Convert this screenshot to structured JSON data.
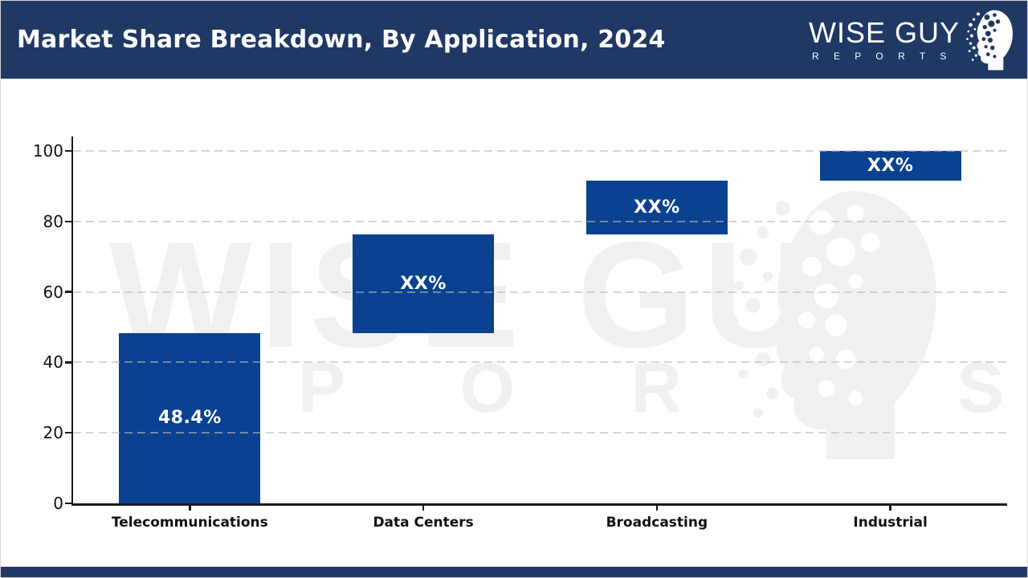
{
  "header": {
    "title": "Market Share Breakdown, By Application, 2024",
    "logo": {
      "wordmark": "WISE GUY",
      "subtext": "R E P O R T S"
    }
  },
  "watermark": {
    "line1": "WISE GUY",
    "line2": "P O R T S"
  },
  "footer": {},
  "colors": {
    "header_bg": "#1f3864",
    "footer_bg": "#1f3864",
    "bar": "#0a4191",
    "bar_label": "#ffffff",
    "axis": "#1a1a1a",
    "gridline": "#d9d9d9",
    "watermark": "#f1f1f1"
  },
  "chart_data": {
    "type": "bar",
    "variant": "waterfall",
    "title": "Market Share Breakdown, By Application, 2024",
    "categories": [
      "Telecommunications",
      "Data Centers",
      "Broadcasting",
      "Industrial"
    ],
    "segments": [
      {
        "category": "Telecommunications",
        "start": 0,
        "end": 48.4,
        "value": 48.4,
        "label": "48.4%"
      },
      {
        "category": "Data Centers",
        "start": 48.4,
        "end": 76.4,
        "value": 28.0,
        "label": "XX%"
      },
      {
        "category": "Broadcasting",
        "start": 76.4,
        "end": 91.5,
        "value": 15.1,
        "label": "XX%"
      },
      {
        "category": "Industrial",
        "start": 91.5,
        "end": 100,
        "value": 8.5,
        "label": "XX%"
      }
    ],
    "xlabel": "",
    "ylabel": "",
    "ylim": [
      0,
      105
    ],
    "yticks": [
      0,
      20,
      40,
      60,
      80,
      100
    ],
    "grid": "dashed-horizontal-over-bars",
    "legend": "none"
  }
}
